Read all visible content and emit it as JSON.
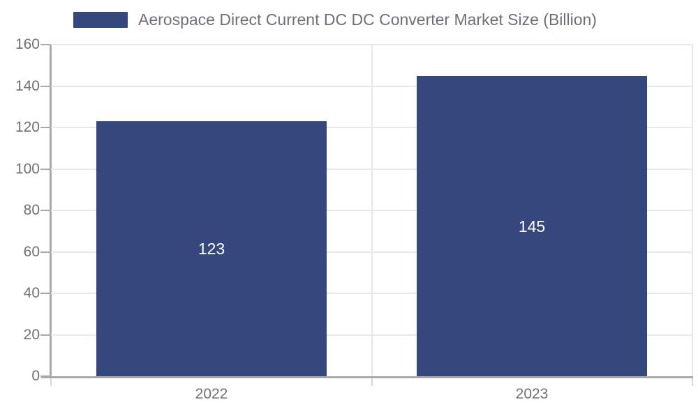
{
  "chart_data": {
    "type": "bar",
    "title": "Aerospace Direct Current DC DC Converter Market Size (Billion)",
    "categories": [
      "2022",
      "2023"
    ],
    "values": [
      123,
      145
    ],
    "ylim": [
      0,
      160
    ],
    "yticks": [
      0,
      20,
      40,
      60,
      80,
      100,
      120,
      140,
      160
    ],
    "grid": true,
    "legend_position": "top-left",
    "value_label_position": "inside-middle",
    "colors": {
      "bar": "#36477E",
      "value_label": "#FFFFFF",
      "axis": "#A9A9A9",
      "gridline": "#E8E8E8",
      "x_tick": "#D6D6D6",
      "tick_label": "#707070",
      "legend_text": "#6E7079",
      "background": "#FFFFFF"
    }
  }
}
